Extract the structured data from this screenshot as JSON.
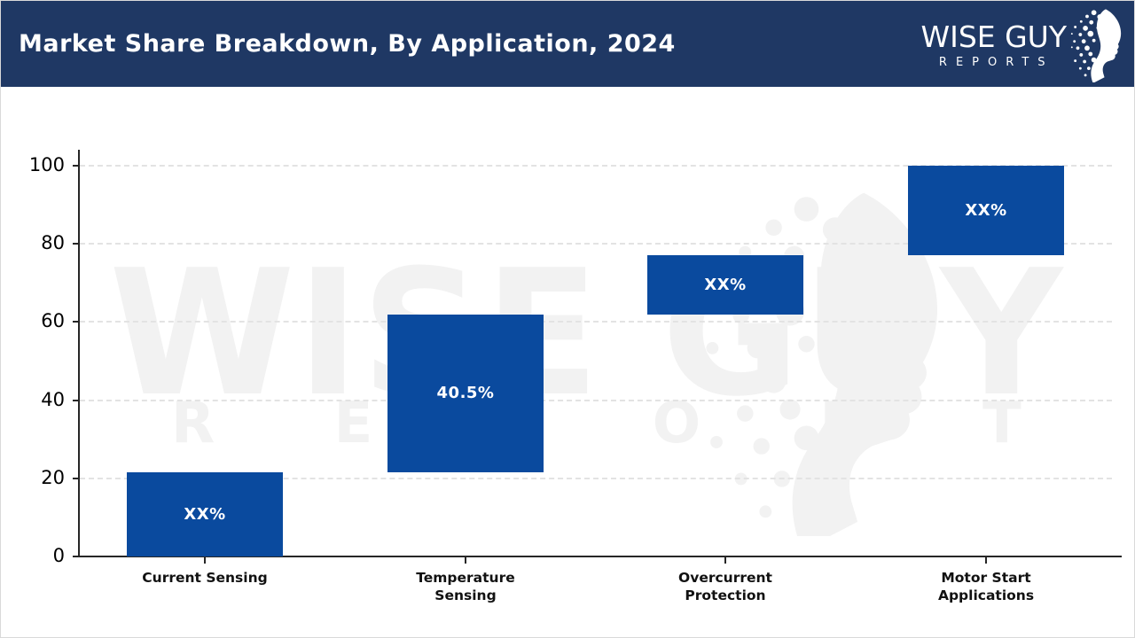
{
  "header": {
    "title": "Market Share Breakdown, By Application, 2024",
    "bg_color": "#1f3864",
    "logo": {
      "line1": "WISE GUY",
      "line2": "REPORTS",
      "icon": "dotted-head-profile"
    }
  },
  "watermark": {
    "line1": "WISE GUY",
    "line2": "REPORTS",
    "icon": "dotted-head-profile",
    "color": "#f2f2f2"
  },
  "chart_data": {
    "type": "bar",
    "subtype": "waterfall-floating-segments",
    "title": "Market Share Breakdown, By Application, 2024",
    "categories": [
      "Current Sensing",
      "Temperature Sensing",
      "Overcurrent Protection",
      "Motor Start Applications"
    ],
    "category_label_lines": [
      [
        "Current Sensing"
      ],
      [
        "Temperature",
        "Sensing"
      ],
      [
        "Overcurrent",
        "Protection"
      ],
      [
        "Motor Start",
        "Applications"
      ]
    ],
    "series": [
      {
        "name": "Market Share",
        "segments": [
          {
            "category": "Current Sensing",
            "start": 0,
            "end": 21.5,
            "value_label": "XX%"
          },
          {
            "category": "Temperature Sensing",
            "start": 21.5,
            "end": 62,
            "value_label": "40.5%"
          },
          {
            "category": "Overcurrent Protection",
            "start": 62,
            "end": 77,
            "value_label": "XX%"
          },
          {
            "category": "Motor Start Applications",
            "start": 77,
            "end": 100,
            "value_label": "XX%"
          }
        ]
      }
    ],
    "xlabel": "",
    "ylabel": "",
    "ylim": [
      0,
      100
    ],
    "yticks": [
      0,
      20,
      40,
      60,
      80,
      100
    ],
    "grid": "horizontal dashed, light gray",
    "legend": "none",
    "bar_color": "#0a4a9e",
    "bar_label_color": "#ffffff",
    "axis_color": "#262626"
  }
}
